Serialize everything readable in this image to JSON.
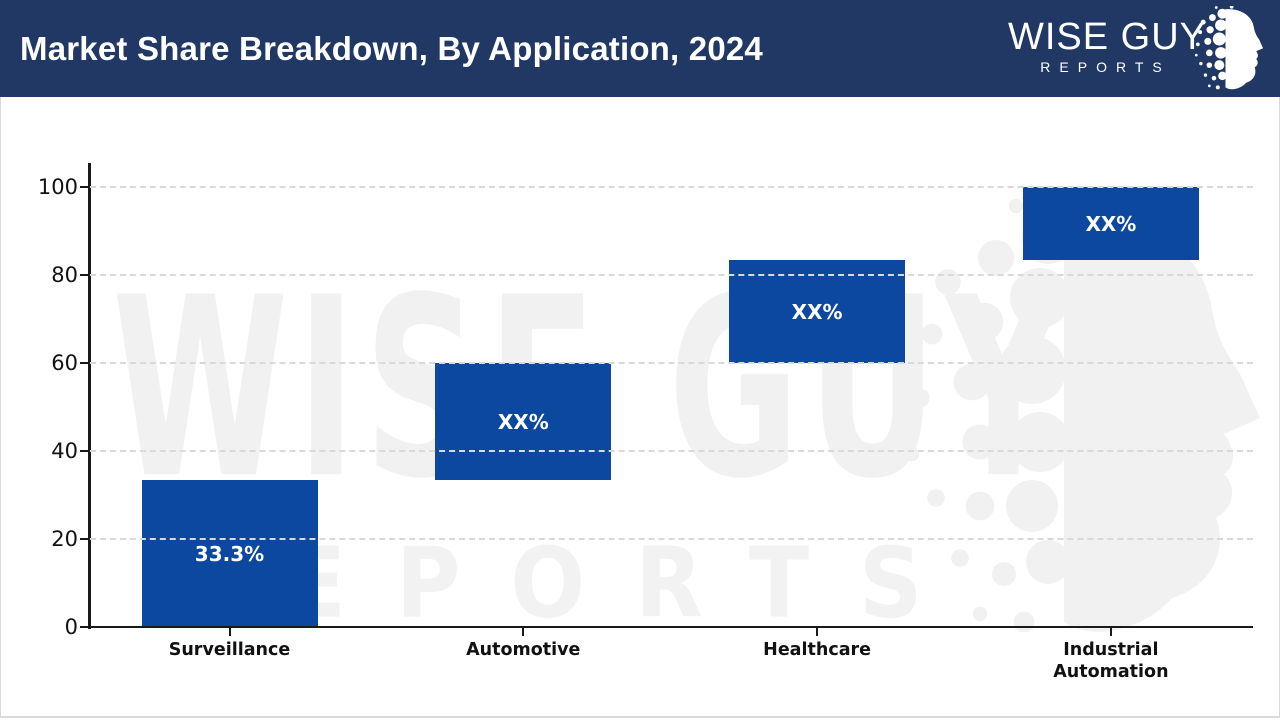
{
  "header": {
    "title": "Market Share Breakdown, By Application, 2024",
    "bg_color": "#213865",
    "logo": {
      "line1": "WISE GUY",
      "line2": "REPORTS"
    }
  },
  "watermark": {
    "line1": "WISE GUY",
    "line2": "REPORTS"
  },
  "chart_data": {
    "type": "bar",
    "subtype": "waterfall",
    "title": "Market Share Breakdown, By Application, 2024",
    "categories": [
      "Surveillance",
      "Automotive",
      "Healthcare",
      "Industrial Automation"
    ],
    "segments": [
      {
        "category": "Surveillance",
        "start": 0,
        "end": 33.3,
        "label": "33.3%"
      },
      {
        "category": "Automotive",
        "start": 33.3,
        "end": 60,
        "label": "XX%"
      },
      {
        "category": "Healthcare",
        "start": 60,
        "end": 83.3,
        "label": "XX%"
      },
      {
        "category": "Industrial Automation",
        "start": 83.3,
        "end": 100,
        "label": "XX%"
      }
    ],
    "y_ticks": [
      0,
      20,
      40,
      60,
      80,
      100
    ],
    "ylim": [
      0,
      105
    ],
    "xlabel": "",
    "ylabel": "",
    "grid": "dashed horizontal, drawn above bars",
    "legend": "none",
    "bar_color": "#0d48a0",
    "value_label_color": "#ffffff",
    "axis_color": "#1a1a1a",
    "grid_color": "#d9d9d9"
  }
}
